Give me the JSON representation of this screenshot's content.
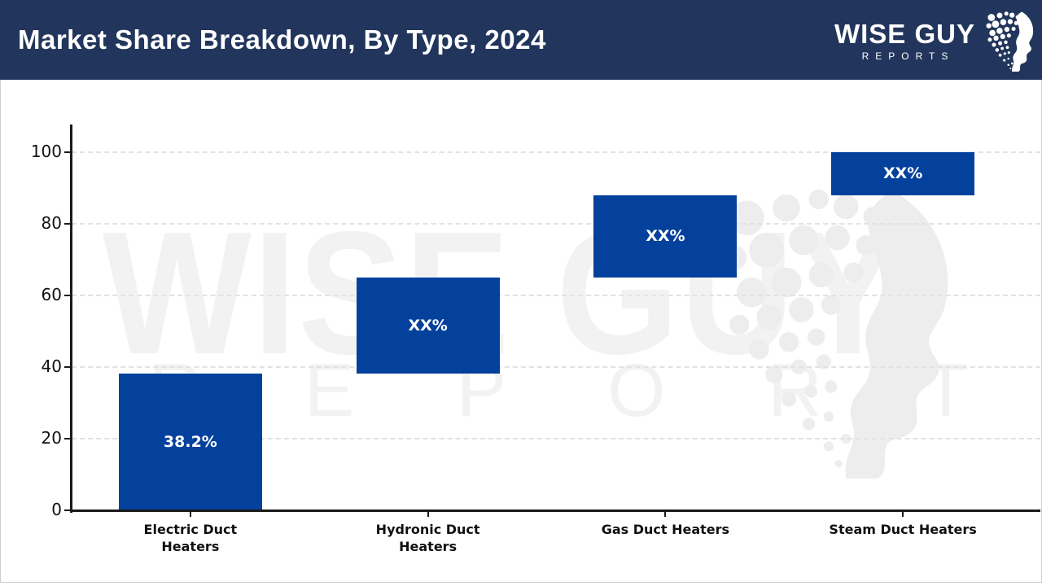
{
  "header": {
    "title": "Market Share Breakdown, By Type, 2024",
    "background_color": "#22355C",
    "logo": {
      "line1": "WISE GUY",
      "line2": "REPORTS",
      "face_icon": "dotted-face-profile"
    }
  },
  "watermark": {
    "line1": "WISE GUY",
    "line2": "R E P O R T S",
    "face_icon": "dotted-face-profile"
  },
  "colors": {
    "header_background": "#22355C",
    "bar": "#04419C",
    "bar_label": "#FFFFFF",
    "gridline": "#E2E2E2",
    "axis": "#1A1A1A",
    "watermark": "#F2F2F2",
    "frame_border": "#CDCDCD"
  },
  "chart_data": {
    "type": "bar",
    "subtype": "waterfall",
    "title": "Market Share Breakdown, By Type, 2024",
    "categories": [
      "Electric Duct Heaters",
      "Hydronic Duct Heaters",
      "Gas Duct Heaters",
      "Steam Duct Heaters"
    ],
    "category_label_lines": [
      [
        "Electric Duct",
        "Heaters"
      ],
      [
        "Hydronic Duct",
        "Heaters"
      ],
      [
        "Gas Duct Heaters"
      ],
      [
        "Steam Duct Heaters"
      ]
    ],
    "series": [
      {
        "name": "Market share (%)",
        "segments": [
          {
            "category": "Electric Duct Heaters",
            "start": 0,
            "end": 38.2,
            "label": "38.2%"
          },
          {
            "category": "Hydronic Duct Heaters",
            "start": 38.2,
            "end": 65,
            "label": "XX%"
          },
          {
            "category": "Gas Duct Heaters",
            "start": 65,
            "end": 88,
            "label": "XX%"
          },
          {
            "category": "Steam Duct Heaters",
            "start": 88,
            "end": 100,
            "label": "XX%"
          }
        ]
      }
    ],
    "xlabel": "",
    "ylabel": "",
    "ylim": [
      0,
      107
    ],
    "yticks": [
      0,
      20,
      40,
      60,
      80,
      100
    ],
    "grid": "horizontal-dashed",
    "legend": "none",
    "bar_color": "#04419C",
    "bar_label_color": "#FFFFFF"
  }
}
